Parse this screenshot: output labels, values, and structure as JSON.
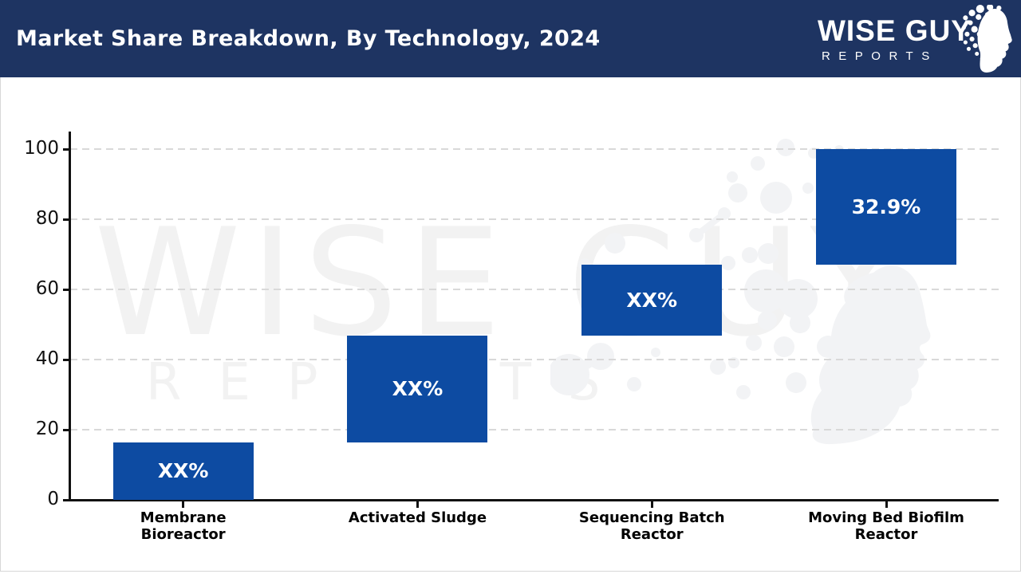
{
  "header": {
    "title": "Market Share Breakdown, By Technology, 2024",
    "background": "#1e3462",
    "logo": {
      "line1": "WISE GUY",
      "line2": "REPORTS"
    }
  },
  "watermark": {
    "line1": "WISE GUY",
    "line2": "REPORTS"
  },
  "chart_data": {
    "type": "bar",
    "subtype": "waterfall",
    "title": "Market Share Breakdown, By Technology, 2024",
    "categories": [
      "Membrane Bioreactor",
      "Activated Sludge",
      "Sequencing Batch Reactor",
      "Moving Bed Biofilm Reactor"
    ],
    "bars": [
      {
        "category": "Membrane Bioreactor",
        "start": 0,
        "end": 16.4,
        "label": "XX%"
      },
      {
        "category": "Activated Sludge",
        "start": 16.4,
        "end": 46.9,
        "label": "XX%"
      },
      {
        "category": "Sequencing Batch Reactor",
        "start": 46.9,
        "end": 67.1,
        "label": "XX%"
      },
      {
        "category": "Moving Bed Biofilm Reactor",
        "start": 67.1,
        "end": 100,
        "label": "32.9%"
      }
    ],
    "ylabel": "",
    "xlabel": "",
    "yticks": [
      0,
      20,
      40,
      60,
      80,
      100
    ],
    "ylim": [
      0,
      100
    ],
    "grid": "horizontal-dashed",
    "bar_color": "#0d4ba2",
    "bar_label_color": "#ffffff",
    "axis_color": "#111111",
    "gridline_color": "#d9d9d9"
  }
}
